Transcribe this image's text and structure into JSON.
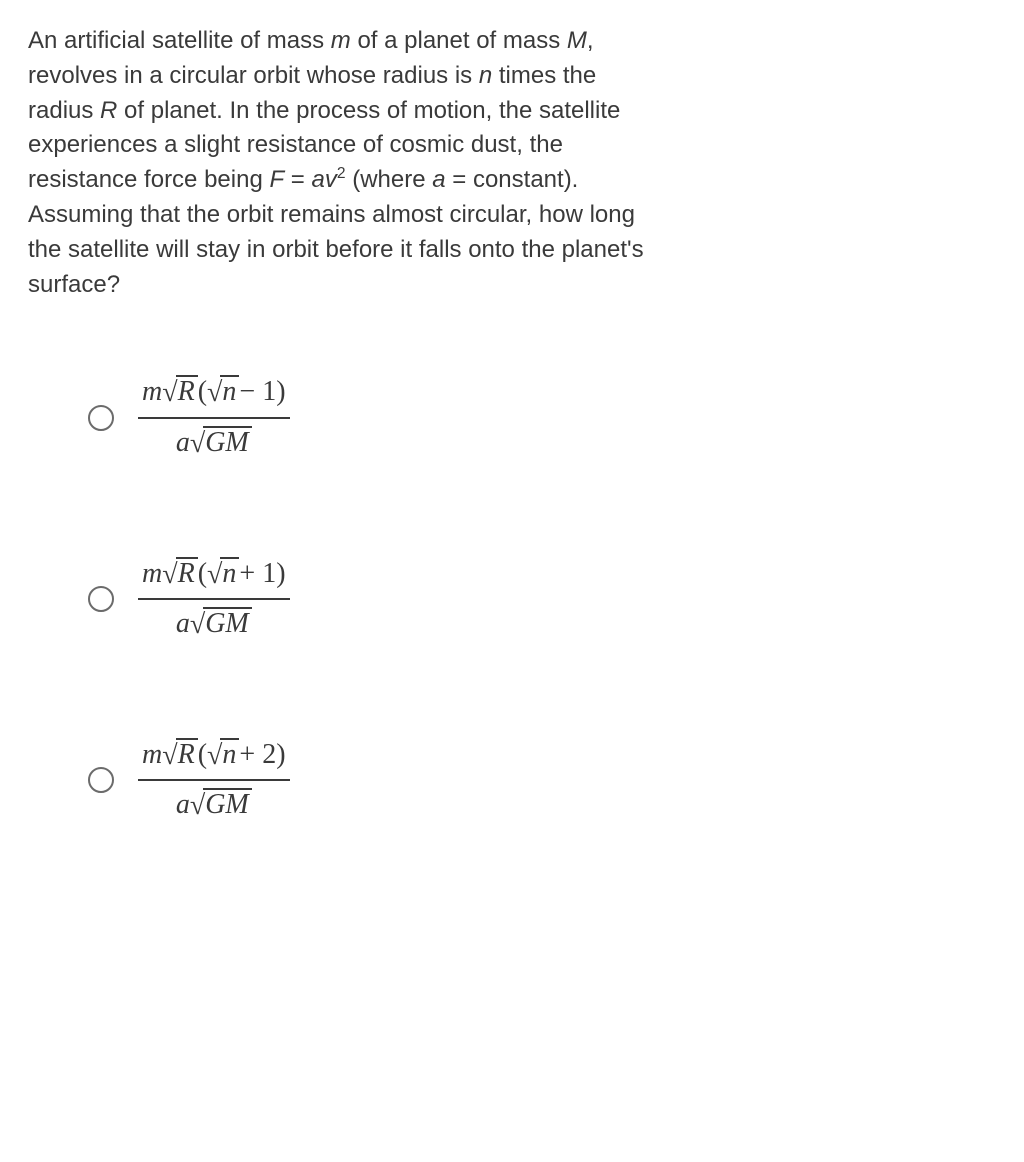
{
  "question": {
    "line1a": "An artificial satellite of mass ",
    "var_m": "m",
    "line1b": " of a planet of mass ",
    "var_M": "M",
    "line1c": ",",
    "line2a": "revolves in a circular orbit whose radius is ",
    "var_n": "n",
    "line2b": " times the",
    "line3a": "radius ",
    "var_R": "R",
    "line3b": " of planet. In the process of motion, the satellite",
    "line4": "experiences a slight resistance of cosmic dust, the",
    "line5a": "resistance force being ",
    "var_F": "F",
    "eq": " = ",
    "var_a": "a",
    "var_v": "v",
    "exp2": "2",
    "line5b": " (where ",
    "var_a2": "a",
    "line5c": " = constant).",
    "line6": "Assuming that the orbit remains almost circular, how long",
    "line7": "the satellite will stay in orbit before it falls onto the planet's",
    "line8": "surface?"
  },
  "math": {
    "m": "m",
    "R": "R",
    "n": "n",
    "a": "a",
    "GM": "GM",
    "radical": "√",
    "open": "(",
    "close": ")",
    "minus1": " − 1",
    "plus1": " + 1",
    "plus2": " + 2"
  }
}
